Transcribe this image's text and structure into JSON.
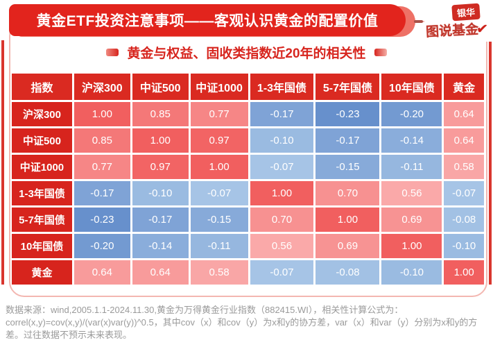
{
  "header": {
    "title": "黄金ETF投资注意事项——客观认识黄金的配置价值"
  },
  "logo": {
    "brand": "银华",
    "series": "图说基金",
    "check": "✔"
  },
  "subtitle": "黄金与权益、固收类指数近20年的相关性",
  "chart_data": {
    "type": "heatmap",
    "title": "黄金与权益、固收类指数近20年的相关性",
    "corner_label": "指数",
    "columns": [
      "沪深300",
      "中证500",
      "中证1000",
      "1-3年国债",
      "5-7年国债",
      "10年国债",
      "黄金"
    ],
    "rows": [
      {
        "label": "沪深300",
        "values": [
          "1.00",
          "0.85",
          "0.77",
          "-0.17",
          "-0.23",
          "-0.20",
          "0.64"
        ]
      },
      {
        "label": "中证500",
        "values": [
          "0.85",
          "1.00",
          "0.97",
          "-0.10",
          "-0.17",
          "-0.14",
          "0.64"
        ]
      },
      {
        "label": "中证1000",
        "values": [
          "0.77",
          "0.97",
          "1.00",
          "-0.07",
          "-0.15",
          "-0.11",
          "0.58"
        ]
      },
      {
        "label": "1-3年国债",
        "values": [
          "-0.17",
          "-0.10",
          "-0.07",
          "1.00",
          "0.70",
          "0.56",
          "-0.07"
        ]
      },
      {
        "label": "5-7年国债",
        "values": [
          "-0.23",
          "-0.17",
          "-0.15",
          "0.70",
          "1.00",
          "0.69",
          "-0.08"
        ]
      },
      {
        "label": "10年国债",
        "values": [
          "-0.20",
          "-0.14",
          "-0.11",
          "0.56",
          "0.69",
          "1.00",
          "-0.10"
        ]
      },
      {
        "label": "黄金",
        "values": [
          "0.64",
          "0.64",
          "0.58",
          "-0.07",
          "-0.08",
          "-0.10",
          "1.00"
        ]
      }
    ],
    "legend_position": "none",
    "grid": false
  },
  "palette": {
    "brand_red": "#d7251e",
    "header_cell_red": "#da2a21",
    "banner_red": "#e2241d",
    "banner_shadow": "#ee7166",
    "frame_border": "#f3b7b1",
    "positive_low": "#fbb3b3",
    "positive_high": "#f15f5f",
    "negative_low": "#aecbe9",
    "negative_high": "#5f89c9",
    "footer_gray": "#9a9a9a"
  },
  "footer": "数据来源：wind,2005.1.1-2024.11.30,黄金为万得黄金行业指数（882415.WI），相关性计算公式为：correl(x,y)=cov(x,y)/(var(x)var(y))^0.5，其中cov（x）和cov（y）为x和y的协方差，var（x）和var（y）分别为x和y的方差。过往数据不预示未来表现。"
}
